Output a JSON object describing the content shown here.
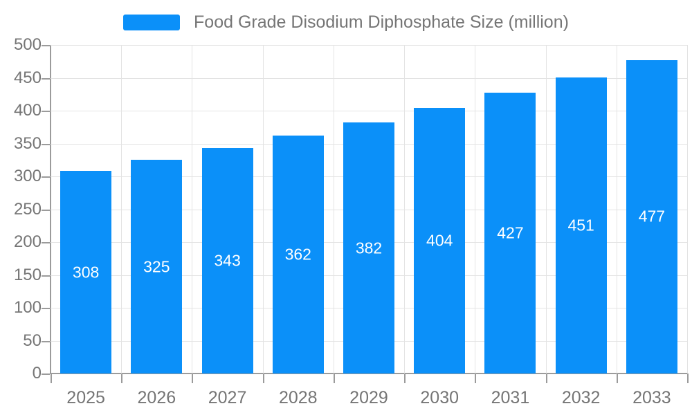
{
  "legend": {
    "label": "Food Grade Disodium Diphosphate Size (million)"
  },
  "chart_data": {
    "type": "bar",
    "title": "Food Grade Disodium Diphosphate Size (million)",
    "categories": [
      "2025",
      "2026",
      "2027",
      "2028",
      "2029",
      "2030",
      "2031",
      "2032",
      "2033"
    ],
    "series": [
      {
        "name": "Food Grade Disodium Diphosphate Size (million)",
        "values": [
          308,
          325,
          343,
          362,
          382,
          404,
          427,
          451,
          477
        ]
      }
    ],
    "xlabel": "",
    "ylabel": "",
    "ylim": [
      0,
      500
    ],
    "ytick_step": 50,
    "grid": true,
    "legend_position": "top",
    "value_labels": "inside-center",
    "colors": {
      "bar": "#0b90f9",
      "value_label": "#ffffff",
      "axis_text": "#757575",
      "grid_line": "#e3e3e3",
      "axis_line": "#9b9b9b"
    }
  }
}
